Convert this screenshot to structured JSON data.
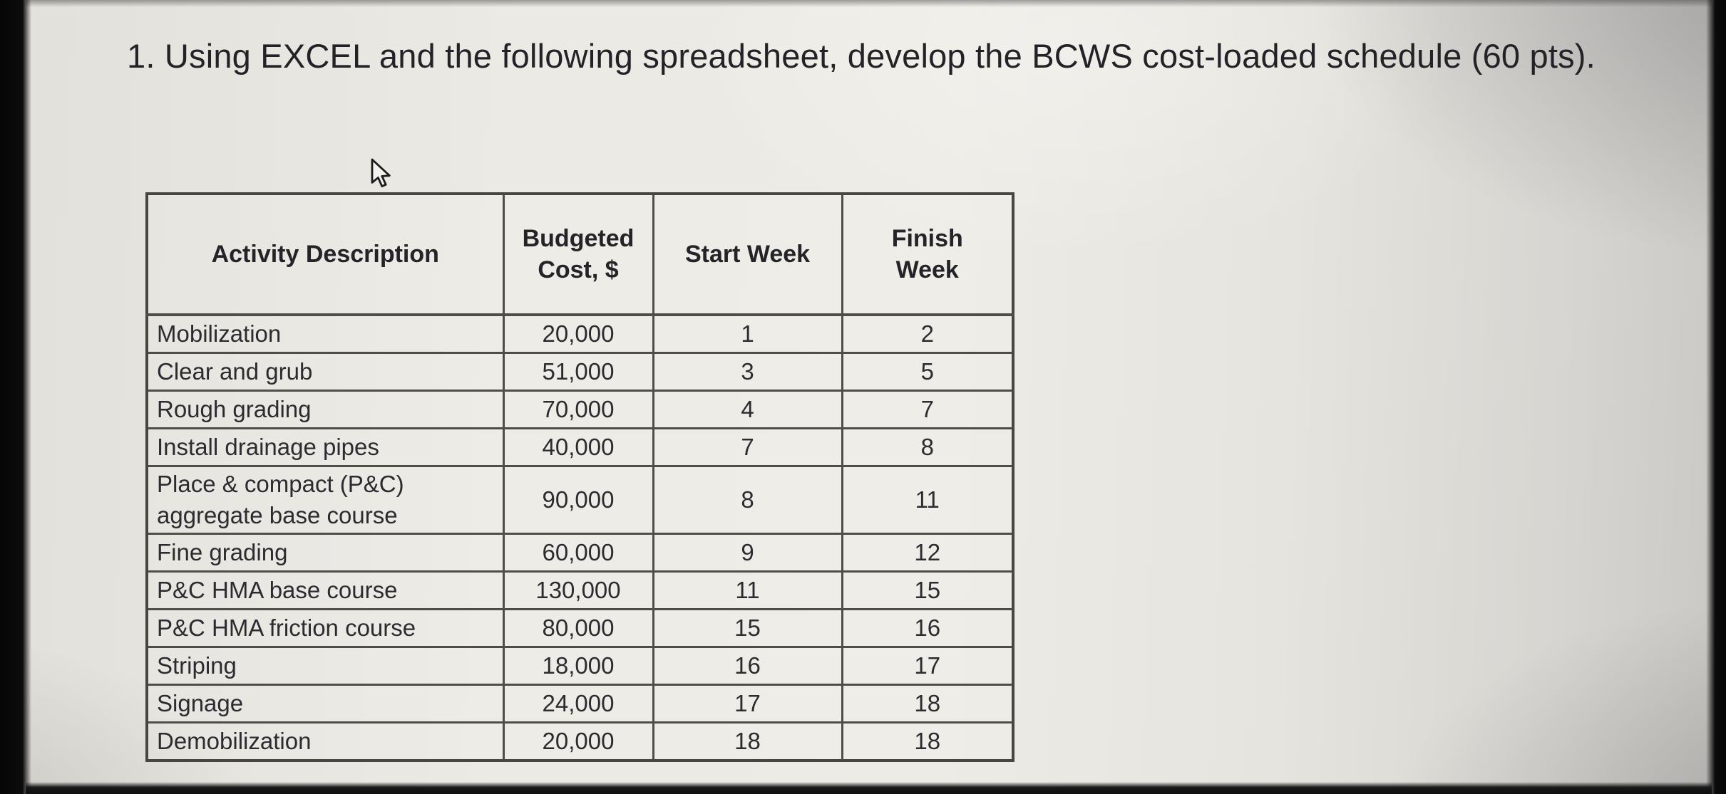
{
  "question": {
    "text": "1. Using EXCEL and the following spreadsheet, develop the BCWS cost-loaded schedule (60 pts)."
  },
  "icons": {
    "cursor": "mouse-arrow-pointer"
  },
  "colors": {
    "page": "#eae8e2",
    "ink": "#2c2c30",
    "table_border": "#4e4d47"
  },
  "table": {
    "headers": [
      "Activity Description",
      "Budgeted\nCost, $",
      "Start Week",
      "Finish\nWeek"
    ],
    "rows": [
      {
        "activity": "Mobilization",
        "budgeted_cost": "20,000",
        "start_week": "1",
        "finish_week": "2"
      },
      {
        "activity": "Clear and grub",
        "budgeted_cost": "51,000",
        "start_week": "3",
        "finish_week": "5"
      },
      {
        "activity": "Rough grading",
        "budgeted_cost": "70,000",
        "start_week": "4",
        "finish_week": "7"
      },
      {
        "activity": "Install drainage pipes",
        "budgeted_cost": "40,000",
        "start_week": "7",
        "finish_week": "8"
      },
      {
        "activity": "Place & compact (P&C)\naggregate base course",
        "budgeted_cost": "90,000",
        "start_week": "8",
        "finish_week": "11"
      },
      {
        "activity": "Fine grading",
        "budgeted_cost": "60,000",
        "start_week": "9",
        "finish_week": "12"
      },
      {
        "activity": "P&C HMA base course",
        "budgeted_cost": "130,000",
        "start_week": "11",
        "finish_week": "15"
      },
      {
        "activity": "P&C HMA friction course",
        "budgeted_cost": "80,000",
        "start_week": "15",
        "finish_week": "16"
      },
      {
        "activity": "Striping",
        "budgeted_cost": "18,000",
        "start_week": "16",
        "finish_week": "17"
      },
      {
        "activity": "Signage",
        "budgeted_cost": "24,000",
        "start_week": "17",
        "finish_week": "18"
      },
      {
        "activity": "Demobilization",
        "budgeted_cost": "20,000",
        "start_week": "18",
        "finish_week": "18"
      }
    ]
  }
}
